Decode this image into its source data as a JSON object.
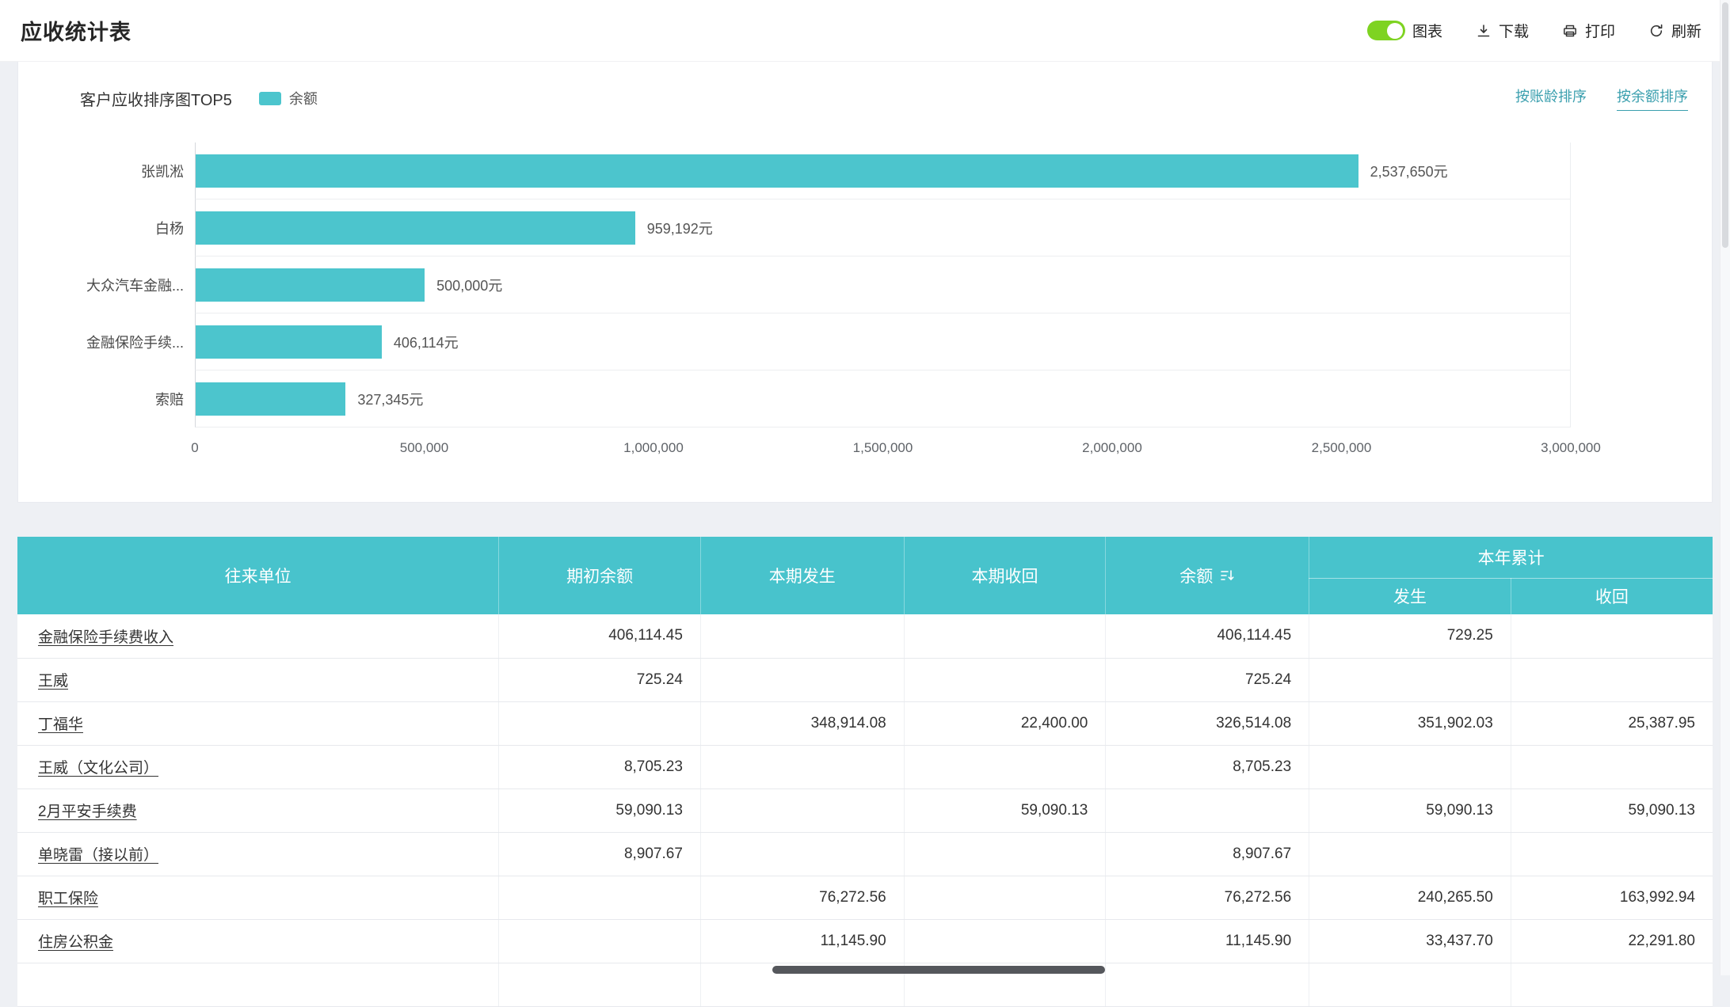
{
  "page": {
    "title": "应收统计表"
  },
  "colors": {
    "accent": "#4cc5cd",
    "header_teal": "#48c3cc",
    "toggle_on": "#7ed321",
    "sort_link": "#3a9fae"
  },
  "toolbar": {
    "chart_toggle_label": "图表",
    "download_label": "下载",
    "print_label": "打印",
    "refresh_label": "刷新"
  },
  "chart": {
    "title": "客户应收排序图TOP5",
    "legend_label": "余额",
    "sort_aging_label": "按账龄排序",
    "sort_balance_label": "按余额排序"
  },
  "chart_data": {
    "type": "bar",
    "orientation": "horizontal",
    "title": "客户应收排序图TOP5",
    "legend": [
      "余额"
    ],
    "legend_position": "top-left",
    "categories": [
      "张凯淞",
      "白杨",
      "大众汽车金融...",
      "金融保险手续...",
      "索赔"
    ],
    "values": [
      2537650,
      959192,
      500000,
      406114,
      327345
    ],
    "value_labels": [
      "2,537,650元",
      "959,192元",
      "500,000元",
      "406,114元",
      "327,345元"
    ],
    "xlim": [
      0,
      3000000
    ],
    "x_ticks": [
      0,
      500000,
      1000000,
      1500000,
      2000000,
      2500000,
      3000000
    ],
    "x_tick_labels": [
      "0",
      "500,000",
      "1,000,000",
      "1,500,000",
      "2,000,000",
      "2,500,000",
      "3,000,000"
    ],
    "grid": "horizontal-band-separators"
  },
  "table": {
    "headers": {
      "unit": "往来单位",
      "opening_balance": "期初余额",
      "current_occurred": "本期发生",
      "current_received": "本期收回",
      "balance": "余额",
      "ytd": "本年累计",
      "ytd_occurred": "发生",
      "ytd_received": "收回"
    },
    "rows": [
      {
        "unit": "金融保险手续费收入",
        "opening": "406,114.45",
        "occurred": "",
        "received": "",
        "balance": "406,114.45",
        "ytd_occurred": "729.25",
        "ytd_received": ""
      },
      {
        "unit": "王威",
        "opening": "725.24",
        "occurred": "",
        "received": "",
        "balance": "725.24",
        "ytd_occurred": "",
        "ytd_received": ""
      },
      {
        "unit": "丁福华",
        "opening": "",
        "occurred": "348,914.08",
        "received": "22,400.00",
        "balance": "326,514.08",
        "ytd_occurred": "351,902.03",
        "ytd_received": "25,387.95"
      },
      {
        "unit": "王威（文化公司）",
        "opening": "8,705.23",
        "occurred": "",
        "received": "",
        "balance": "8,705.23",
        "ytd_occurred": "",
        "ytd_received": ""
      },
      {
        "unit": "2月平安手续费",
        "opening": "59,090.13",
        "occurred": "",
        "received": "59,090.13",
        "balance": "",
        "ytd_occurred": "59,090.13",
        "ytd_received": "59,090.13"
      },
      {
        "unit": "单晓雷（接以前）",
        "opening": "8,907.67",
        "occurred": "",
        "received": "",
        "balance": "8,907.67",
        "ytd_occurred": "",
        "ytd_received": ""
      },
      {
        "unit": "职工保险",
        "opening": "",
        "occurred": "76,272.56",
        "received": "",
        "balance": "76,272.56",
        "ytd_occurred": "240,265.50",
        "ytd_received": "163,992.94"
      },
      {
        "unit": "住房公积金",
        "opening": "",
        "occurred": "11,145.90",
        "received": "",
        "balance": "11,145.90",
        "ytd_occurred": "33,437.70",
        "ytd_received": "22,291.80"
      }
    ]
  }
}
